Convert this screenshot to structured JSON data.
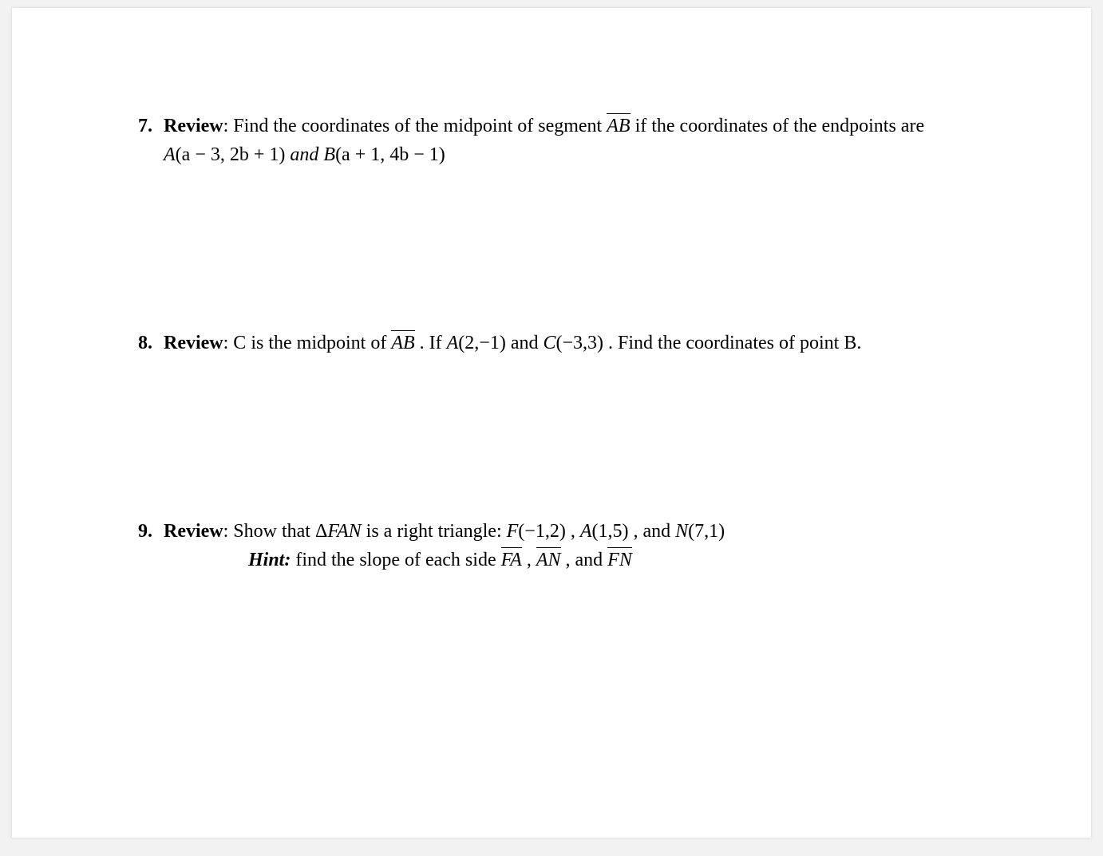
{
  "page": {
    "background_color": "#ffffff",
    "outer_background": "#f2f2f2",
    "font_family": "Times New Roman",
    "base_fontsize_pt": 18,
    "text_color": "#000000"
  },
  "problems": [
    {
      "number": "7.",
      "label": "Review",
      "text_before_seg": ":  Find the coordinates of the midpoint of segment  ",
      "seg": "AB",
      "text_after_seg": "  if the coordinates of the endpoints are",
      "line2_A": "A",
      "line2_A_coords": "(a − 3,  2b + 1)",
      "line2_and": " and  ",
      "line2_B": "B",
      "line2_B_coords": "(a + 1,  4b − 1)"
    },
    {
      "number": "8.",
      "label": "Review",
      "text1": ":  C is the midpoint of  ",
      "seg": "AB",
      "text2": " . If  ",
      "A_label": "A",
      "A_coords": "(2,−1)",
      "text3": "  and  ",
      "C_label": "C",
      "C_coords": "(−3,3)",
      "text4": " .  Find the coordinates of point B."
    },
    {
      "number": "9.",
      "label": "Review",
      "text1": ":  Show that  ",
      "delta": "Δ",
      "tri_name": "FAN",
      "text2": "  is a right triangle: ",
      "F_label": "F",
      "F_coords": "(−1,2)",
      "sep1": " ,   ",
      "A_label": "A",
      "A_coords": "(1,5)",
      "sep2": " ,  and  ",
      "N_label": "N",
      "N_coords": "(7,1)",
      "hint_label": "Hint:",
      "hint_text1": " find the slope of each side  ",
      "seg_FA": "FA",
      "hint_sep1": " ,   ",
      "seg_AN": "AN",
      "hint_sep2": " ,  and  ",
      "seg_FN": "FN"
    }
  ]
}
